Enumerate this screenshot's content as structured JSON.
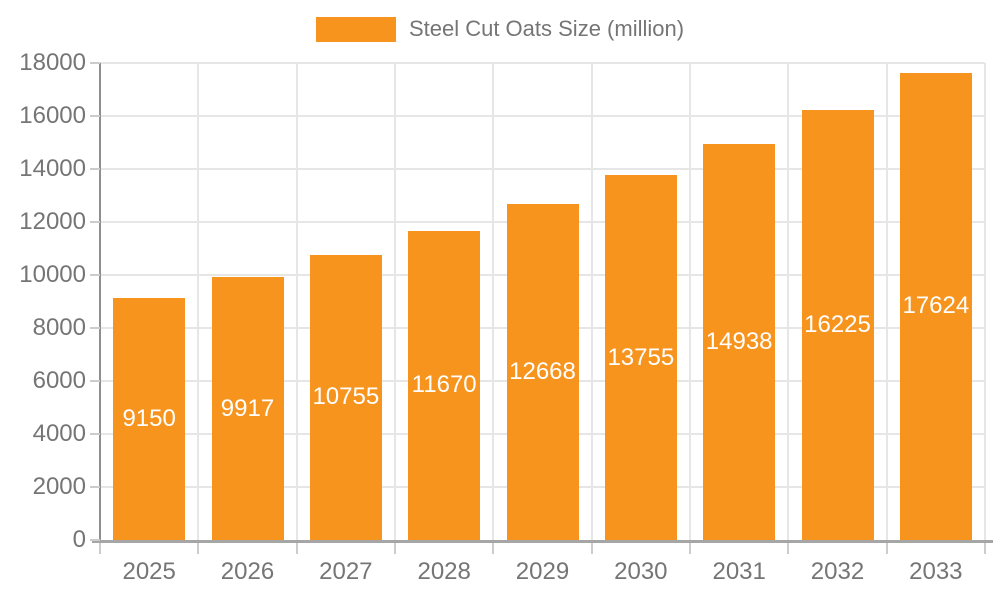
{
  "legend": {
    "label": "Steel Cut Oats Size (million)"
  },
  "chart_data": {
    "type": "bar",
    "title": "Steel Cut Oats Size (million)",
    "series_name": "Steel Cut Oats Size (million)",
    "categories": [
      "2025",
      "2026",
      "2027",
      "2028",
      "2029",
      "2030",
      "2031",
      "2032",
      "2033"
    ],
    "values": [
      9150,
      9917,
      10755,
      11670,
      12668,
      13755,
      14938,
      16225,
      17624
    ],
    "value_labels": [
      "9150",
      "9917",
      "10755",
      "11670",
      "12668",
      "13755",
      "14938",
      "16225",
      "17624"
    ],
    "xlabel": "",
    "ylabel": "",
    "ylim": [
      0,
      18000
    ],
    "y_ticks": [
      0,
      2000,
      4000,
      6000,
      8000,
      10000,
      12000,
      14000,
      16000,
      18000
    ],
    "grid": true,
    "legend_position": "top-center"
  },
  "colors": {
    "bar": "#f7941e",
    "bar_label": "#ffffff",
    "axis_text": "#757575",
    "legend_text": "#757575",
    "grid_line": "#e6e6e6",
    "x_axis_line": "#a6a6a6",
    "y_axis_line": "#8f8f8f",
    "tick": "#cccccc",
    "background": "#ffffff"
  }
}
